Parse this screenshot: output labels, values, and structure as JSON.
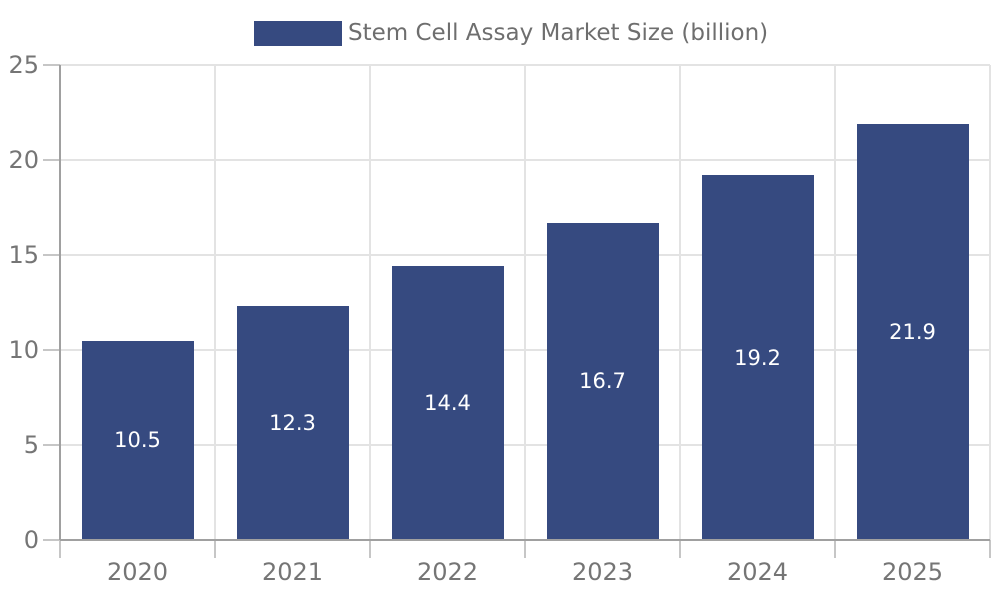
{
  "legend": {
    "label": "Stem Cell Assay Market Size (billion)"
  },
  "chart_data": {
    "type": "bar",
    "title": "",
    "xlabel": "",
    "ylabel": "",
    "categories": [
      "2020",
      "2021",
      "2022",
      "2023",
      "2024",
      "2025"
    ],
    "values": [
      10.5,
      12.3,
      14.4,
      16.7,
      19.2,
      21.9
    ],
    "series_name": "Stem Cell Assay Market Size (billion)",
    "ylim": [
      0,
      25
    ],
    "yticks": [
      0,
      5,
      10,
      15,
      20,
      25
    ],
    "grid": true,
    "legend_position": "top-center",
    "value_label_position": "inside-center",
    "colors": {
      "bar": "#364A80",
      "value_label": "#ffffff",
      "axis_line": "#a0a0a0",
      "tick_line": "#c6c6c6",
      "grid_line": "#e3e3e3",
      "tick_label": "#757575",
      "legend_text": "#6e6e6e",
      "background": "#ffffff"
    }
  }
}
